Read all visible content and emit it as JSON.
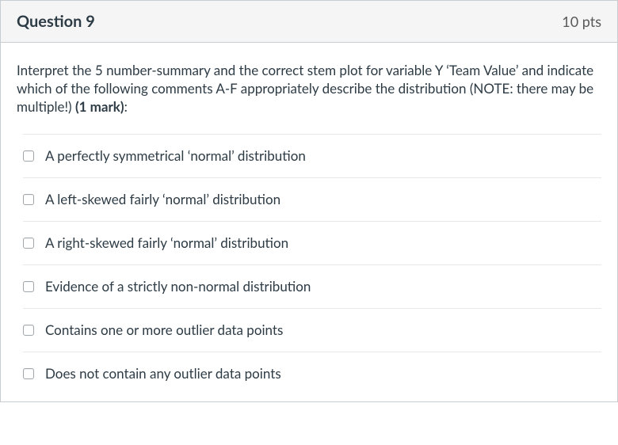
{
  "header": {
    "title": "Question 9",
    "points": "10 pts"
  },
  "prompt": {
    "text_before_bold": "Interpret the 5 number-summary and the correct stem plot for variable Y ‘Team Value’ and indicate which of the following comments A-F appropriately describe the distribution (NOTE: there may be multiple!) ",
    "bold": "(1 mark)",
    "text_after_bold": ":"
  },
  "answers": [
    {
      "label": "A perfectly symmetrical ‘normal’ distribution"
    },
    {
      "label": "A left-skewed fairly ‘normal’ distribution"
    },
    {
      "label": "A right-skewed fairly ‘normal’ distribution"
    },
    {
      "label": "Evidence of a strictly non-normal distribution"
    },
    {
      "label": "Contains one or more outlier data points"
    },
    {
      "label": "Does not contain any outlier data points"
    }
  ],
  "colors": {
    "border": "#c7cdd1",
    "header_bg": "#f5f5f5",
    "text": "#2d3b45",
    "points_text": "#595959",
    "row_border": "#e8e8e8",
    "checkbox_border": "#a0a6aa"
  }
}
